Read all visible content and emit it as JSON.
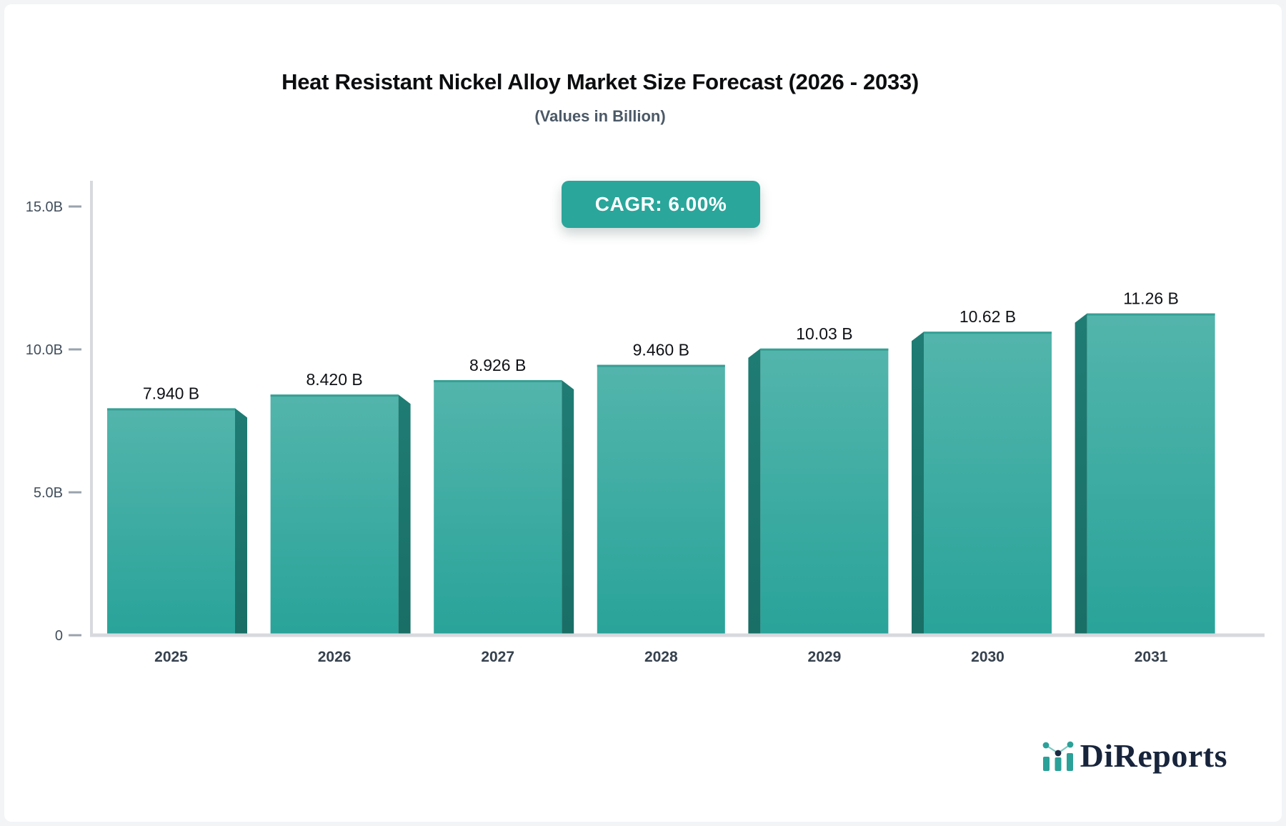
{
  "page": {
    "title": "Heat Resistant Nickel Alloy Market Size Forecast (2026 - 2033)",
    "subtitle": "(Values in Billion)"
  },
  "badge": {
    "label": "CAGR: 6.00%",
    "bg_color": "#2aa69b",
    "text_color": "#ffffff"
  },
  "chart_data": {
    "type": "bar",
    "title": "Heat Resistant Nickel Alloy Market Size Forecast (2026 - 2033)",
    "subtitle": "(Values in Billion)",
    "categories": [
      "2025",
      "2026",
      "2027",
      "2028",
      "2029",
      "2030",
      "2031"
    ],
    "values": [
      7.94,
      8.42,
      8.926,
      9.46,
      10.03,
      10.62,
      11.26
    ],
    "value_labels": [
      "7.940 B",
      "8.420 B",
      "8.926 B",
      "9.460 B",
      "10.03 B",
      "10.62 B",
      "11.26 B"
    ],
    "unit": "Billion",
    "ylim": [
      0,
      15
    ],
    "y_ticks": [
      {
        "value": 0,
        "label": "0"
      },
      {
        "value": 5,
        "label": "5.0B"
      },
      {
        "value": 10,
        "label": "10.0B"
      },
      {
        "value": 15,
        "label": "15.0B"
      }
    ],
    "grid": false,
    "legend": "none",
    "colors": {
      "bar_top": "#53b5ac",
      "bar_bottom": "#29a399",
      "bar_top_edge": "#379f95",
      "bar_side": "#1f7c74",
      "bar_side_dark": "#196e66",
      "axis_line": "#d7d9de",
      "tick_dash": "#9aa3ad",
      "tick_text": "#414e5b",
      "category_text": "#36414e",
      "value_text": "#0f1115"
    }
  },
  "watermark": {
    "text": "DiReports",
    "icon": "mini-bar-chart-trend-icon",
    "icon_bar_color": "#2ba199",
    "icon_dot_color": "#1b2a44",
    "text_color": "#17243b"
  }
}
